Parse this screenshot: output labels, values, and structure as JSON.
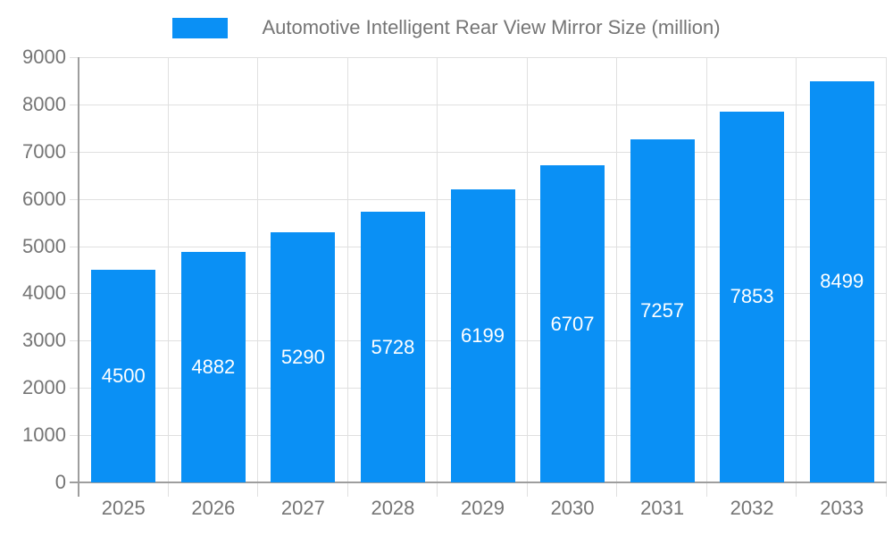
{
  "legend": {
    "label": "Automotive Intelligent Rear View Mirror Size (million)"
  },
  "colors": {
    "bar": "#0a90f5",
    "grid": "#e0e0e0",
    "axis": "#9e9e9e",
    "text": "#757575",
    "bar_label": "#ffffff"
  },
  "chart_data": {
    "type": "bar",
    "title": "Automotive Intelligent Rear View Mirror Size (million)",
    "categories": [
      "2025",
      "2026",
      "2027",
      "2028",
      "2029",
      "2030",
      "2031",
      "2032",
      "2033"
    ],
    "values": [
      4500,
      4882,
      5290,
      5728,
      6199,
      6707,
      7257,
      7853,
      8499
    ],
    "xlabel": "",
    "ylabel": "",
    "ylim": [
      0,
      9000
    ],
    "ytick_step": 1000,
    "grid": true,
    "legend_position": "top"
  }
}
